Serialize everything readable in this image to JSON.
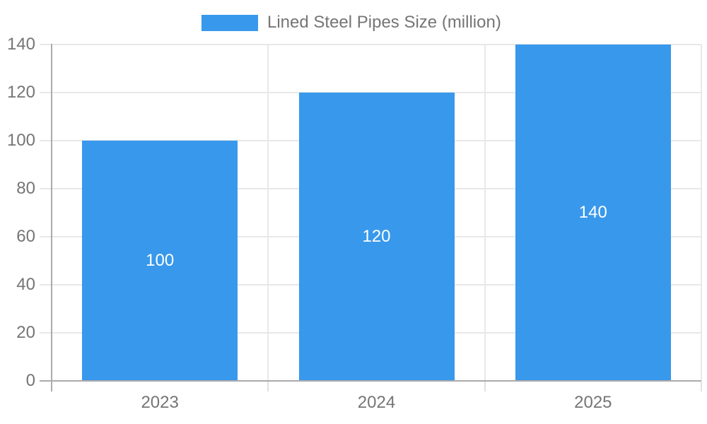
{
  "legend": {
    "label": "Lined Steel Pipes Size (million)"
  },
  "colors": {
    "bar": "#3898EC",
    "grid": "#E8E8E8",
    "tick": "#E0E0E0",
    "axis": "#ABABAB",
    "axis_label": "#757575",
    "bar_label": "#FFFFFF",
    "background": "#FFFFFF"
  },
  "chart_data": {
    "type": "bar",
    "title": "",
    "categories": [
      "2023",
      "2024",
      "2025"
    ],
    "series": [
      {
        "name": "Lined Steel Pipes Size (million)",
        "values": [
          100,
          120,
          140
        ]
      }
    ],
    "data_labels": [
      "100",
      "120",
      "140"
    ],
    "xlabel": "",
    "ylabel": "",
    "ylim": [
      0,
      140
    ],
    "ytick_step": 20,
    "yticks": [
      0,
      20,
      40,
      60,
      80,
      100,
      120,
      140
    ],
    "grid": true,
    "legend_position": "top"
  }
}
